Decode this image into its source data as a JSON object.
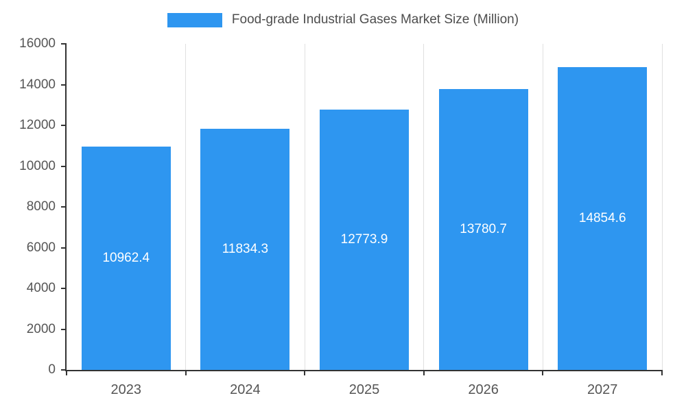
{
  "chart_data": {
    "type": "bar",
    "title": "Food-grade Industrial Gases Market Size (Million)",
    "categories": [
      "2023",
      "2024",
      "2025",
      "2026",
      "2027"
    ],
    "values": [
      10962.4,
      11834.3,
      12773.9,
      13780.7,
      14854.6
    ],
    "xlabel": "",
    "ylabel": "",
    "ylim": [
      0,
      16000
    ],
    "yticks": [
      0,
      2000,
      4000,
      6000,
      8000,
      10000,
      12000,
      14000,
      16000
    ],
    "grid": "vertical-splitlines",
    "legend_position": "top-center",
    "bar_color": "#2E96F0",
    "value_label_color": "#ffffff",
    "axis_text_color": "#555555",
    "axis_line_color": "#333333",
    "grid_color": "#e0e0e0"
  }
}
